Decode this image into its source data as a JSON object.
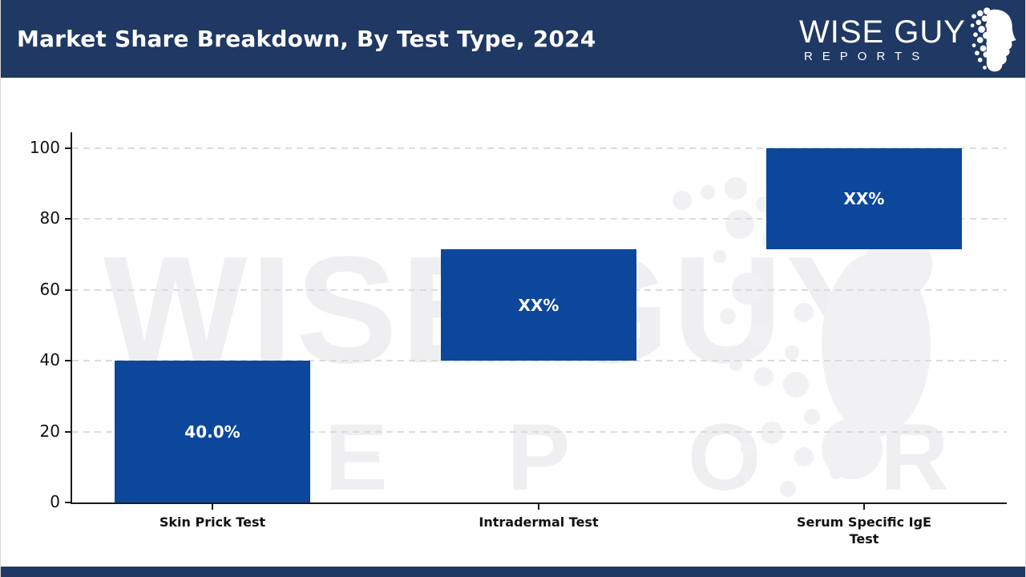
{
  "header": {
    "title": "Market Share Breakdown, By Test Type, 2024",
    "logo": {
      "line1": "WISE GUY",
      "line2": "REPORTS"
    }
  },
  "watermark": {
    "line1": "WISE GUY",
    "line2": "R E P O R T S"
  },
  "colors": {
    "header_bg": "#1F3864",
    "footer_bg": "#1F3864",
    "bar": "#0C479C",
    "bar_label": "#FFFFFF",
    "gridline": "#DCDCDC",
    "axis": "#1A1A1A",
    "watermark": "#EFEFF2"
  },
  "chart_data": {
    "type": "bar",
    "subtype": "waterfall",
    "title": "Market Share Breakdown, By Test Type, 2024",
    "categories": [
      "Skin Prick Test",
      "Intradermal Test",
      "Serum Specific IgE\nTest"
    ],
    "bars": [
      {
        "category": "Skin Prick Test",
        "start": 0,
        "end": 40,
        "label": "40.0%"
      },
      {
        "category": "Intradermal Test",
        "start": 40,
        "end": 71.4,
        "label": "XX%"
      },
      {
        "category": "Serum Specific IgE\nTest",
        "start": 71.4,
        "end": 100,
        "label": "XX%"
      }
    ],
    "yticks": [
      0,
      20,
      40,
      60,
      80,
      100
    ],
    "ylim": [
      0,
      104.4
    ],
    "grid": "horizontal-dashed",
    "legend": "none"
  }
}
